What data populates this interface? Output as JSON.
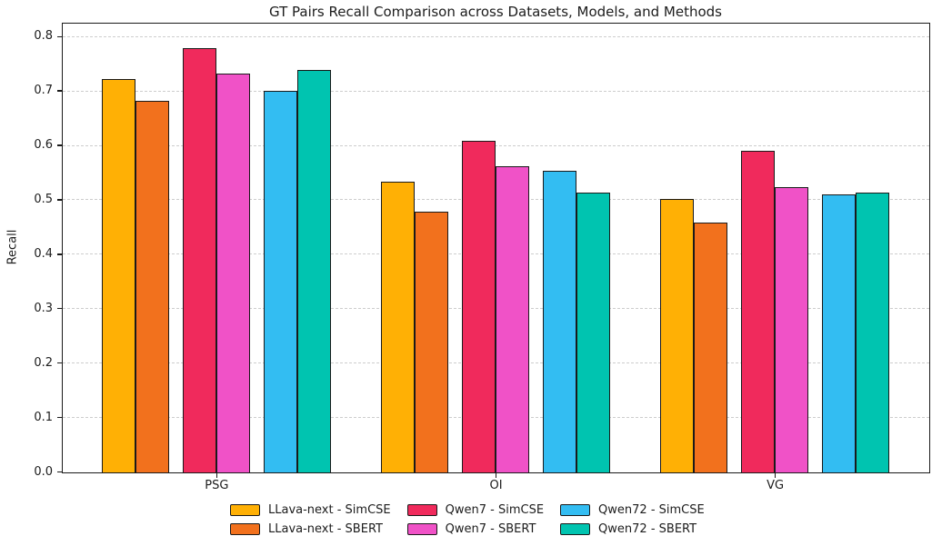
{
  "chart_data": {
    "type": "bar",
    "title": "GT Pairs Recall Comparison across Datasets, Models, and Methods",
    "xlabel": "",
    "ylabel": "Recall",
    "categories": [
      "PSG",
      "OI",
      "VG"
    ],
    "series": [
      {
        "name": "LLava-next - SimCSE",
        "color": "#FFB005",
        "values": [
          0.723,
          0.535,
          0.503
        ]
      },
      {
        "name": "LLava-next - SBERT",
        "color": "#F2711D",
        "values": [
          0.683,
          0.479,
          0.459
        ]
      },
      {
        "name": "Qwen7 - SimCSE",
        "color": "#F02A5C",
        "values": [
          0.78,
          0.61,
          0.591
        ]
      },
      {
        "name": "Qwen7 - SBERT",
        "color": "#F052C7",
        "values": [
          0.733,
          0.563,
          0.525
        ]
      },
      {
        "name": "Qwen72 - SimCSE",
        "color": "#33BDF2",
        "values": [
          0.701,
          0.554,
          0.511
        ]
      },
      {
        "name": "Qwen72 - SBERT",
        "color": "#00C4B0",
        "values": [
          0.739,
          0.515,
          0.515
        ]
      }
    ],
    "ylim": [
      0.0,
      0.823
    ],
    "yticks": [
      0.0,
      0.1,
      0.2,
      0.3,
      0.4,
      0.5,
      0.6,
      0.7,
      0.8
    ],
    "grid": "horizontal-dashed",
    "gridline_color": "#cdcdcd",
    "bar_edge_color": "#1a1a1a",
    "legend_position": "bottom-center",
    "legend_columns": 3
  }
}
